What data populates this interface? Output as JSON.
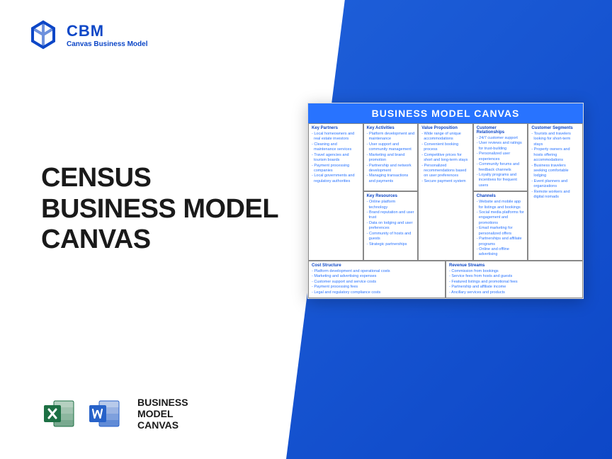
{
  "brand": {
    "title": "CBM",
    "subtitle": "Canvas Business Model",
    "logo_color": "#0d47c7"
  },
  "main_title": {
    "line1": "CENSUS",
    "line2": "BUSINESS MODEL",
    "line3": "CANVAS"
  },
  "footer": {
    "excel_color": "#1d7044",
    "word_color": "#2762c9",
    "line1": "BUSINESS",
    "line2": "MODEL",
    "line3": "CANVAS"
  },
  "canvas": {
    "header": "BUSINESS MODEL CANVAS",
    "header_bg": "#2873ff",
    "text_color": "#2873ff",
    "border_color": "#888",
    "sections": {
      "key_partners": {
        "title": "Key Partners",
        "items": [
          "Local homeowners and real estate investors",
          "Cleaning and maintenance services",
          "Travel agencies and tourism boards",
          "Payment processing companies",
          "Local governments and regulatory authorities"
        ]
      },
      "key_activities": {
        "title": "Key Activities",
        "items": [
          "Platform development and maintenance",
          "User support and community management",
          "Marketing and brand promotion",
          "Partnership and network development",
          "Managing transactions and payments"
        ]
      },
      "key_resources": {
        "title": "Key Resources",
        "items": [
          "Online platform technology",
          "Brand reputation and user trust",
          "Data on lodging and user preferences",
          "Community of hosts and guests",
          "Strategic partnerships"
        ]
      },
      "value_proposition": {
        "title": "Value Proposition",
        "items": [
          "Wide range of unique accommodations",
          "Convenient booking process",
          "Competitive prices for short and long-term stays",
          "Personalized recommendations based on user preferences",
          "Secure payment system"
        ]
      },
      "customer_relationships": {
        "title": "Customer Relationships",
        "items": [
          "24/7 customer support",
          "User reviews and ratings for trust-building",
          "Personalized user experiences",
          "Community forums and feedback channels",
          "Loyalty programs and incentives for frequent users"
        ]
      },
      "channels": {
        "title": "Channels",
        "items": [
          "Website and mobile app for listings and bookings",
          "Social media platforms for engagement and promotions",
          "Email marketing for personalized offers",
          "Partnerships and affiliate programs",
          "Online and offline advertising"
        ]
      },
      "customer_segments": {
        "title": "Customer Segments",
        "items": [
          "Tourists and travelers looking for short-term stays",
          "Property owners and hosts offering accommodations",
          "Business travelers seeking comfortable lodging",
          "Event planners and organizations",
          "Remote workers and digital nomads"
        ]
      },
      "cost_structure": {
        "title": "Cost Structure",
        "items": [
          "Platform development and operational costs",
          "Marketing and advertising expenses",
          "Customer support and service costs",
          "Payment processing fees",
          "Legal and regulatory compliance costs"
        ]
      },
      "revenue_streams": {
        "title": "Revenue Streams",
        "items": [
          "Commission from bookings",
          "Service fees from hosts and guests",
          "Featured listings and promotional fees",
          "Partnership and affiliate income",
          "Ancillary services and products"
        ]
      }
    }
  },
  "colors": {
    "bg_gradient_start": "#1e5fd9",
    "bg_gradient_end": "#0d47c7",
    "title_text": "#1a1a1a"
  }
}
